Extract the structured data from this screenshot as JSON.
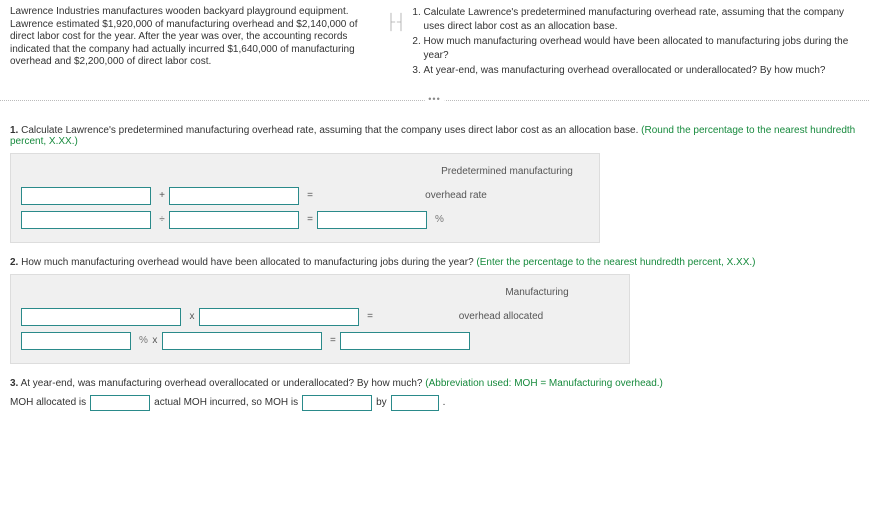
{
  "header": {
    "problem_text": "Lawrence Industries manufactures wooden backyard playground equipment. Lawrence estimated $1,920,000 of manufacturing overhead and $2,140,000 of direct labor cost for the year. After the year was over, the accounting records indicated that the company had actually incurred $1,640,000 of manufacturing overhead and $2,200,000 of direct labor cost.",
    "q1": "Calculate Lawrence's predetermined manufacturing overhead rate, assuming that the company uses direct labor cost as an allocation base.",
    "q2": "How much manufacturing overhead would have been allocated to manufacturing jobs during the year?",
    "q3": "At year-end, was manufacturing overhead overallocated or underallocated? By how much?"
  },
  "section1": {
    "num": "1.",
    "text": "Calculate Lawrence's predetermined manufacturing overhead rate, assuming that the company uses direct labor cost as an allocation base.",
    "hint": "(Round the percentage to the nearest hundredth percent, X.XX.)",
    "right_label_top": "Predetermined manufacturing",
    "right_label_bottom": "overhead rate",
    "op_div": "÷",
    "equals": "=",
    "pct": "%",
    "input_widths": {
      "a": 130,
      "b": 130,
      "r1": 130,
      "r2": 110
    }
  },
  "section2": {
    "num": "2.",
    "text": "How much manufacturing overhead would have been allocated to manufacturing jobs during the year?",
    "hint": "(Enter the percentage to the nearest hundredth percent, X.XX.)",
    "right_label_top": "Manufacturing",
    "right_label_bottom": "overhead allocated",
    "op_mul": "x",
    "equals": "=",
    "pct": "%",
    "input_widths": {
      "a": 160,
      "b": 160,
      "r1": 40,
      "c": 110,
      "d": 160,
      "r2": 130
    }
  },
  "section3": {
    "num": "3.",
    "text": "At year-end, was manufacturing overhead overallocated or underallocated? By how much?",
    "hint": "(Abbreviation used: MOH = Manufacturing overhead.)",
    "t1": "MOH allocated is",
    "t2": "actual MOH incurred, so MOH is",
    "t3": "by",
    "t4": ".",
    "input_widths": {
      "a": 60,
      "b": 70,
      "c": 48
    }
  },
  "colors": {
    "accent": "#2a8a8a",
    "hint": "#178a3d"
  }
}
